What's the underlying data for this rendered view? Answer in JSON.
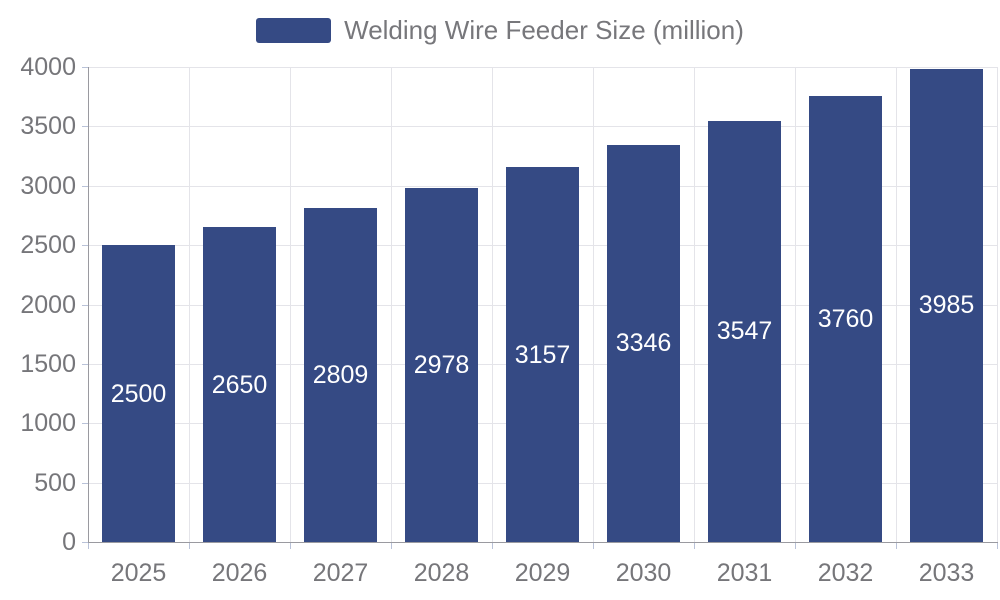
{
  "chart_data": {
    "type": "bar",
    "title": "Welding Wire Feeder Size (million)",
    "categories": [
      "2025",
      "2026",
      "2027",
      "2028",
      "2029",
      "2030",
      "2031",
      "2032",
      "2033"
    ],
    "series": [
      {
        "name": "Welding Wire Feeder Size (million)",
        "values": [
          2500,
          2650,
          2809,
          2978,
          3157,
          3346,
          3547,
          3760,
          3985
        ]
      }
    ],
    "xlabel": "",
    "ylabel": "",
    "ylim": [
      0,
      4000
    ],
    "yticks": [
      0,
      500,
      1000,
      1500,
      2000,
      2500,
      3000,
      3500,
      4000
    ],
    "grid": true,
    "legend_position": "top-center",
    "bar_labels_inside": true,
    "colors": {
      "bar": "#354a84",
      "bar_label": "#ffffff",
      "axis_line": "#9a9aa0",
      "tick_mark": "#b9c2d8",
      "gridline": "#e4e4e9",
      "axis_text": "#76767a",
      "legend_text": "#77777b",
      "background": "#ffffff"
    }
  }
}
